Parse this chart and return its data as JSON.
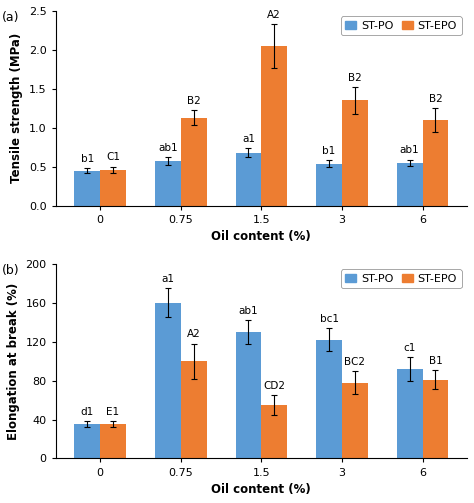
{
  "categories": [
    "0",
    "0.75",
    "1.5",
    "3",
    "6"
  ],
  "panel_a": {
    "ylabel": "Tensile strength (MPa)",
    "xlabel": "Oil content (%)",
    "ylim": [
      0,
      2.5
    ],
    "yticks": [
      0,
      0.5,
      1.0,
      1.5,
      2.0,
      2.5
    ],
    "stpo_values": [
      0.45,
      0.57,
      0.68,
      0.54,
      0.55
    ],
    "stepo_values": [
      0.46,
      1.13,
      2.05,
      1.35,
      1.1
    ],
    "stpo_errors": [
      0.03,
      0.05,
      0.06,
      0.04,
      0.04
    ],
    "stepo_errors": [
      0.04,
      0.1,
      0.28,
      0.17,
      0.15
    ],
    "stpo_labels": [
      "b1",
      "ab1",
      "a1",
      "b1",
      "ab1"
    ],
    "stepo_labels": [
      "C1",
      "B2",
      "A2",
      "B2",
      "B2"
    ]
  },
  "panel_b": {
    "ylabel": "Elongation at break (%)",
    "xlabel": "Oil content (%)",
    "ylim": [
      0,
      200
    ],
    "yticks": [
      0,
      40,
      80,
      120,
      160,
      200
    ],
    "stpo_values": [
      35,
      160,
      130,
      122,
      92
    ],
    "stepo_values": [
      35,
      100,
      55,
      78,
      81
    ],
    "stpo_errors": [
      3,
      15,
      12,
      12,
      12
    ],
    "stepo_errors": [
      3,
      18,
      10,
      12,
      10
    ],
    "stpo_labels": [
      "d1",
      "a1",
      "ab1",
      "bc1",
      "c1"
    ],
    "stepo_labels": [
      "E1",
      "A2",
      "CD2",
      "BC2",
      "B1"
    ]
  },
  "color_stpo": "#5B9BD5",
  "color_stepo": "#ED7D31",
  "legend_labels": [
    "ST-PO",
    "ST-EPO"
  ],
  "bar_width": 0.32,
  "label_fontsize": 7.5,
  "axis_label_fontsize": 8.5,
  "tick_fontsize": 8,
  "legend_fontsize": 8
}
